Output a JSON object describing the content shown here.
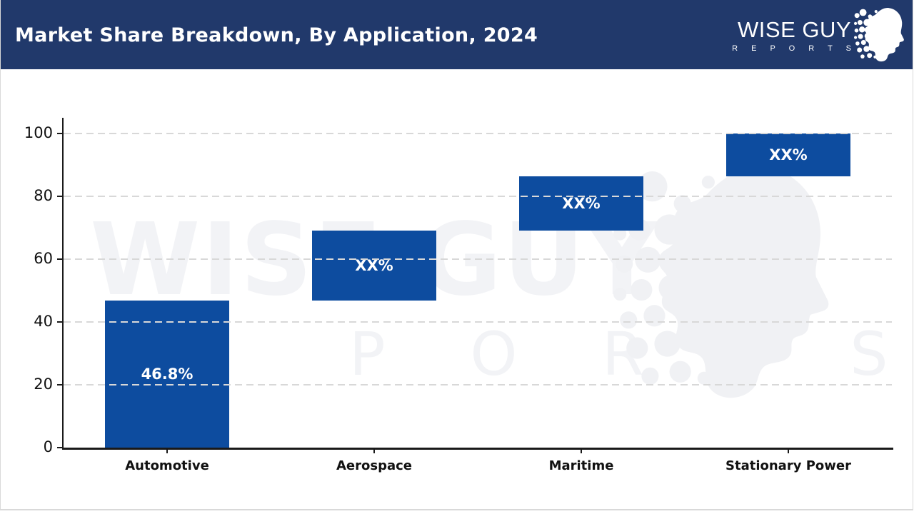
{
  "header": {
    "title": "Market Share Breakdown, By Application, 2024",
    "bg_color": "#21396b",
    "logo": {
      "line1": "WISE GUY",
      "line2": "R E P O R T S"
    }
  },
  "watermark": {
    "line1": "WISE GUY",
    "line2": "P O R T S"
  },
  "chart_data": {
    "type": "bar",
    "subtype": "waterfall",
    "title": "Market Share Breakdown, By Application, 2024",
    "categories": [
      "Automotive",
      "Aerospace",
      "Maritime",
      "Stationary Power"
    ],
    "segments": [
      {
        "category": "Automotive",
        "start": 0,
        "end": 46.8,
        "label": "46.8%"
      },
      {
        "category": "Aerospace",
        "start": 46.8,
        "end": 69.1,
        "label": "XX%"
      },
      {
        "category": "Maritime",
        "start": 69.1,
        "end": 86.4,
        "label": "XX%"
      },
      {
        "category": "Stationary Power",
        "start": 86.4,
        "end": 100,
        "label": "XX%"
      }
    ],
    "yticks": [
      0,
      20,
      40,
      60,
      80,
      100
    ],
    "ylim": [
      0,
      105
    ],
    "xlabel": "",
    "ylabel": "",
    "bar_color": "#0d4c9f",
    "bar_label_color": "#ffffff",
    "grid": {
      "visible": true,
      "style": "dashed",
      "color": "#d8d8d8",
      "on_top": true
    },
    "legend": null
  }
}
